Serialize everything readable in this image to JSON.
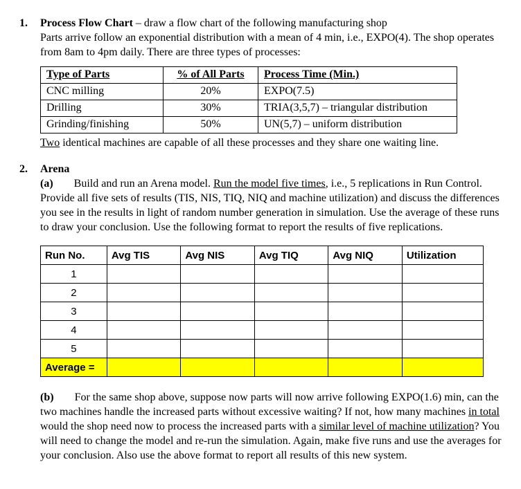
{
  "q1": {
    "num": "1.",
    "title": "Process Flow Chart",
    "title_after": " – draw a flow chart of the following manufacturing shop",
    "p1": "Parts arrive follow an exponential distribution with a mean of 4 min, i.e., EXPO(4). The shop operates from 8am to 4pm daily. There are three types of processes:",
    "table": {
      "headers": [
        "Type of Parts",
        "% of All Parts",
        "Process Time (Min.)"
      ],
      "col_widths": [
        "160px",
        "120px",
        "270px"
      ],
      "rows": [
        [
          "CNC milling",
          "20%",
          "EXPO(7.5)"
        ],
        [
          "Drilling",
          "30%",
          "TRIA(3,5,7) – triangular distribution"
        ],
        [
          "Grinding/finishing",
          "50%",
          "UN(5,7) – uniform distribution"
        ]
      ]
    },
    "after_u": "Two",
    "after_rest": " identical machines are capable of all these processes and they share one waiting line."
  },
  "q2": {
    "num": "2.",
    "title": "Arena",
    "a": {
      "label": "(a)",
      "pre": "Build and run an Arena model. ",
      "u": "Run the model five times",
      "post": ", i.e., 5 replications in Run Control. Provide all five sets of results (TIS, NIS, TIQ, NIQ and machine utilization) and discuss the differences you see in the results in light of random number generation in simulation. Use the average of these runs to draw your conclusion. Use the following format to report the results of five replications."
    },
    "results_table": {
      "headers": [
        "Run No.",
        "Avg TIS",
        "Avg NIS",
        "Avg TIQ",
        "Avg NIQ",
        "Utilization"
      ],
      "col_widths": [
        "90px",
        "100px",
        "100px",
        "100px",
        "100px",
        "110px"
      ],
      "rows": [
        "1",
        "2",
        "3",
        "4",
        "5"
      ],
      "avg_label": "Average ="
    },
    "b": {
      "label": "(b)",
      "t1": "For the same shop above, suppose now parts will now arrive following EXPO(1.6) min, can the two machines handle the increased parts without excessive waiting? If not, how many machines ",
      "u1": "in total",
      "t2": " would the shop need now to process the increased parts with a ",
      "u2": "similar level of machine utilization",
      "t3": "?  You will need to change the model and re-run the simulation. Again, make five runs and use the averages for your conclusion. Also use the above format to report all results of this new system."
    }
  }
}
